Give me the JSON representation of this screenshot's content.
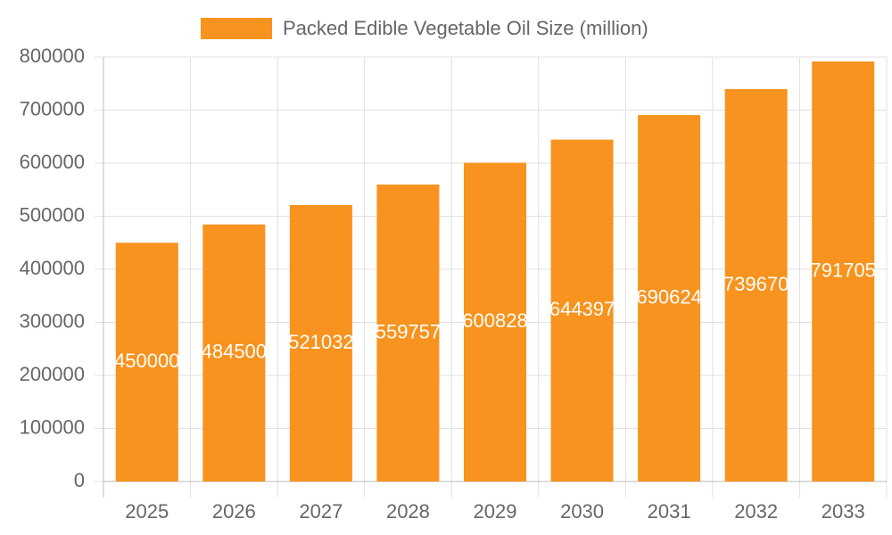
{
  "chart_data": {
    "type": "bar",
    "categories": [
      "2025",
      "2026",
      "2027",
      "2028",
      "2029",
      "2030",
      "2031",
      "2032",
      "2033"
    ],
    "series": [
      {
        "name": "Packed Edible Vegetable Oil Size (million)",
        "color": "#f7931e",
        "values": [
          450000,
          484500,
          521032,
          559757,
          600828,
          644397,
          690624,
          739670,
          791705
        ]
      }
    ],
    "ylim": [
      0,
      800000
    ],
    "yticks": [
      0,
      100000,
      200000,
      300000,
      400000,
      500000,
      600000,
      700000,
      800000
    ],
    "grid": true,
    "legend": "top",
    "data_labels": true
  }
}
